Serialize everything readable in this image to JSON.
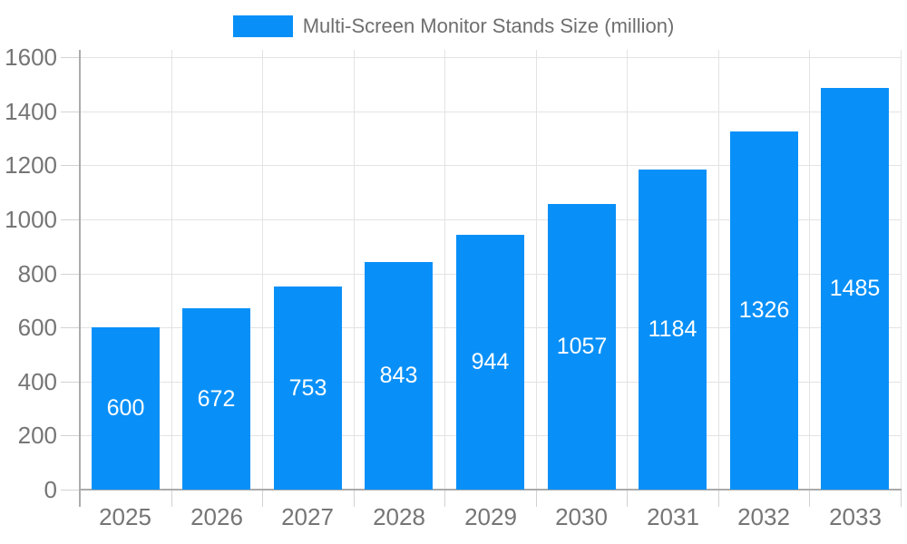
{
  "legend": {
    "label": "Multi-Screen Monitor Stands Size (million)"
  },
  "colors": {
    "bar": "#0990f8",
    "grid": "#e3e3e3",
    "tick": "#d2d2d2",
    "axis_line": "#ababab",
    "axis_text": "#757575",
    "legend_text": "#6e6e6e",
    "value_label": "#ffffff"
  },
  "chart_data": {
    "type": "bar",
    "title": "Multi-Screen Monitor Stands Size (million)",
    "categories": [
      "2025",
      "2026",
      "2027",
      "2028",
      "2029",
      "2030",
      "2031",
      "2032",
      "2033"
    ],
    "series": [
      {
        "name": "Multi-Screen Monitor Stands Size (million)",
        "values": [
          600,
          672,
          753,
          843,
          944,
          1057,
          1184,
          1326,
          1485
        ]
      }
    ],
    "value_labels": [
      600,
      672,
      753,
      843,
      944,
      1057,
      1184,
      1326,
      1485
    ],
    "value_label_position": "center-inside",
    "xlabel": "",
    "ylabel": "",
    "ylim": [
      0,
      1600
    ],
    "yticks": [
      0,
      200,
      400,
      600,
      800,
      1000,
      1200,
      1400,
      1600
    ],
    "grid": "both",
    "legend_position": "top-center"
  }
}
